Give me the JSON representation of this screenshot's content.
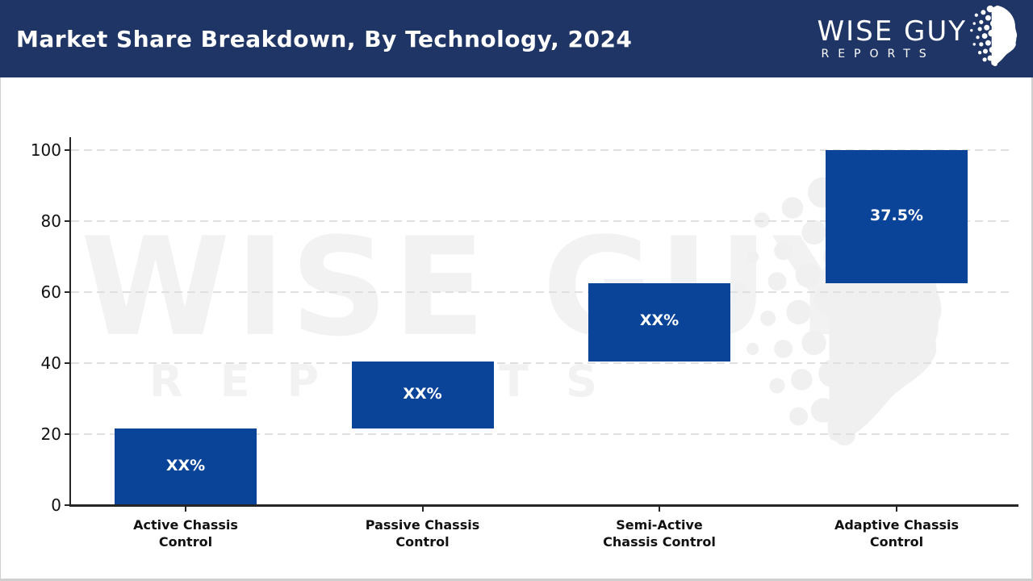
{
  "header": {
    "title": "Market Share Breakdown, By Technology, 2024",
    "logo": {
      "line1": "WISE GUY",
      "line2": "REPORTS"
    }
  },
  "watermark": {
    "line1": "WISE GUY",
    "line2": "REPORTS"
  },
  "colors": {
    "header_bg": "#1f3565",
    "bar": "#0a4499",
    "bar_label_text": "#ffffff",
    "title_text": "#ffffff",
    "grid": "#e0e0e0",
    "axis": "#262626",
    "watermark": "#f2f2f2"
  },
  "chart_data": {
    "type": "bar",
    "variant": "waterfall",
    "title": "Market Share Breakdown, By Technology, 2024",
    "categories": [
      "Active Chassis\nControl",
      "Passive Chassis\nControl",
      "Semi-Active\nChassis Control",
      "Adaptive Chassis\nControl"
    ],
    "segments": [
      {
        "start": 0,
        "end": 21.5,
        "label": "XX%"
      },
      {
        "start": 21.5,
        "end": 40.5,
        "label": "XX%"
      },
      {
        "start": 40.5,
        "end": 62.5,
        "label": "XX%"
      },
      {
        "start": 62.5,
        "end": 100,
        "label": "37.5%"
      }
    ],
    "xlabel": "",
    "ylabel": "",
    "ylim": [
      0,
      100
    ],
    "y_ticks": [
      0,
      20,
      40,
      60,
      80,
      100
    ],
    "grid": "horizontal-dashed",
    "legend": "none"
  }
}
